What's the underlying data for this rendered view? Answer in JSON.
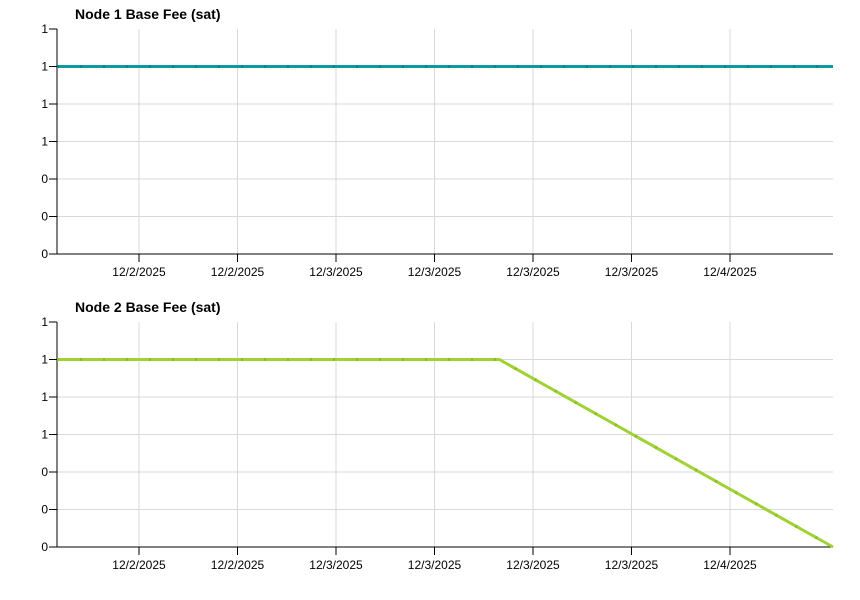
{
  "colors": {
    "background": "#ffffff",
    "axis": "#000000",
    "grid": "#d9d9d9",
    "text": "#000000",
    "node1_line": "#0e99a1",
    "node1_marker": "#0a8289",
    "node2_line": "#9fd232",
    "node2_marker": "#8abc28"
  },
  "chart_data": [
    {
      "type": "line",
      "title": "Node 1 Base Fee (sat)",
      "xlabel": "",
      "ylabel": "",
      "x_tick_labels": [
        "12/2/2025",
        "12/2/2025",
        "12/3/2025",
        "12/3/2025",
        "12/3/2025",
        "12/3/2025",
        "12/4/2025"
      ],
      "y_tick_labels": [
        "1",
        "1",
        "1",
        "1",
        "0",
        "0",
        "0"
      ],
      "y_tick_values": [
        1.2,
        1.0,
        0.8,
        0.6,
        0.4,
        0.2,
        0
      ],
      "ylim": [
        0,
        1.2
      ],
      "grid": true,
      "legend": "none",
      "line_color": "#0e99a1",
      "marker_color": "#0a8289",
      "series": [
        {
          "name": "Node 1 Base Fee (sat)",
          "points": [
            {
              "x_frac": 0,
              "y": 1
            },
            {
              "x_frac": 1,
              "y": 1
            }
          ]
        }
      ]
    },
    {
      "type": "line",
      "title": "Node 2 Base Fee (sat)",
      "xlabel": "",
      "ylabel": "",
      "x_tick_labels": [
        "12/2/2025",
        "12/2/2025",
        "12/3/2025",
        "12/3/2025",
        "12/3/2025",
        "12/3/2025",
        "12/4/2025"
      ],
      "y_tick_labels": [
        "1",
        "1",
        "1",
        "1",
        "0",
        "0",
        "0"
      ],
      "y_tick_values": [
        1.2,
        1.0,
        0.8,
        0.6,
        0.4,
        0.2,
        0
      ],
      "ylim": [
        0,
        1.2
      ],
      "grid": true,
      "legend": "none",
      "line_color": "#9fd232",
      "marker_color": "#8abc28",
      "series": [
        {
          "name": "Node 2 Base Fee (sat)",
          "points": [
            {
              "x_frac": 0,
              "y": 1
            },
            {
              "x_frac": 0.57,
              "y": 1
            },
            {
              "x_frac": 1,
              "y": 0
            }
          ]
        }
      ]
    }
  ]
}
